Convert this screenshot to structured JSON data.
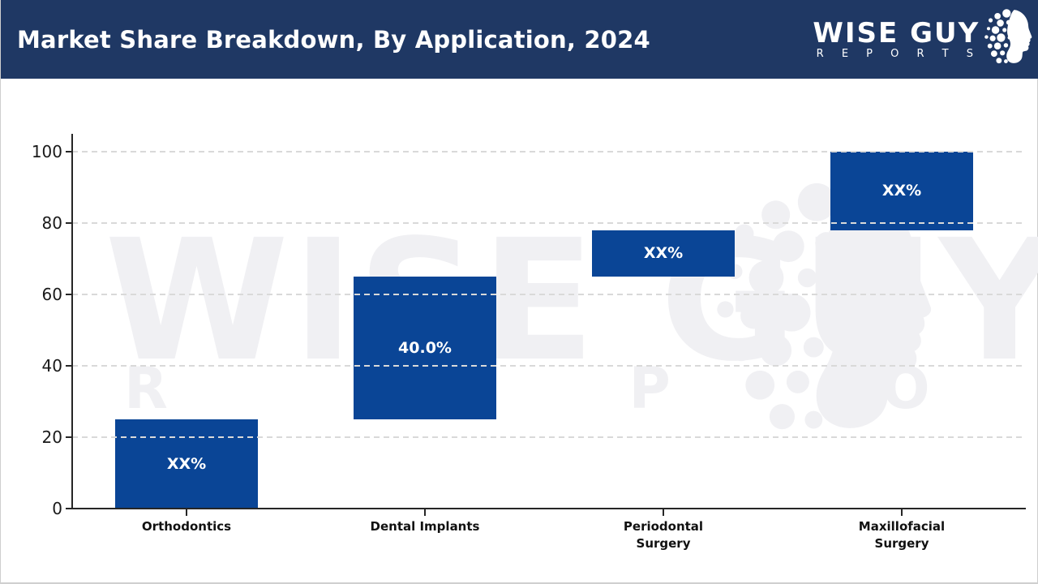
{
  "header": {
    "title": "Market Share Breakdown, By Application, 2024",
    "brand_line1": "WISE GUY",
    "brand_line2": "R E P O R T S",
    "bg_color": "#1f3864"
  },
  "watermark": {
    "line1": "WISE GUY",
    "line2": "R E P O R T S"
  },
  "chart_data": {
    "type": "bar",
    "subtype": "waterfall",
    "title": "Market Share Breakdown, By Application, 2024",
    "categories": [
      "Orthodontics",
      "Dental Implants",
      "Periodontal Surgery",
      "Maxillofacial Surgery"
    ],
    "segments": [
      {
        "category": "Orthodontics",
        "label_lines": [
          "Orthodontics"
        ],
        "start": 0,
        "end": 25,
        "value_label": "XX%"
      },
      {
        "category": "Dental Implants",
        "label_lines": [
          "Dental Implants"
        ],
        "start": 25,
        "end": 65,
        "value_label": "40.0%"
      },
      {
        "category": "Periodontal Surgery",
        "label_lines": [
          "Periodontal",
          "Surgery"
        ],
        "start": 65,
        "end": 78,
        "value_label": "XX%"
      },
      {
        "category": "Maxillofacial Surgery",
        "label_lines": [
          "Maxillofacial",
          "Surgery"
        ],
        "start": 78,
        "end": 100,
        "value_label": "XX%"
      }
    ],
    "y_ticks": [
      0,
      20,
      40,
      60,
      80,
      100
    ],
    "ylim": [
      0,
      105
    ],
    "xlabel": "",
    "ylabel": "",
    "bar_color": "#0a4596",
    "grid": "horizontal-dashed",
    "grid_color": "#d9d9d9",
    "legend": "none"
  }
}
